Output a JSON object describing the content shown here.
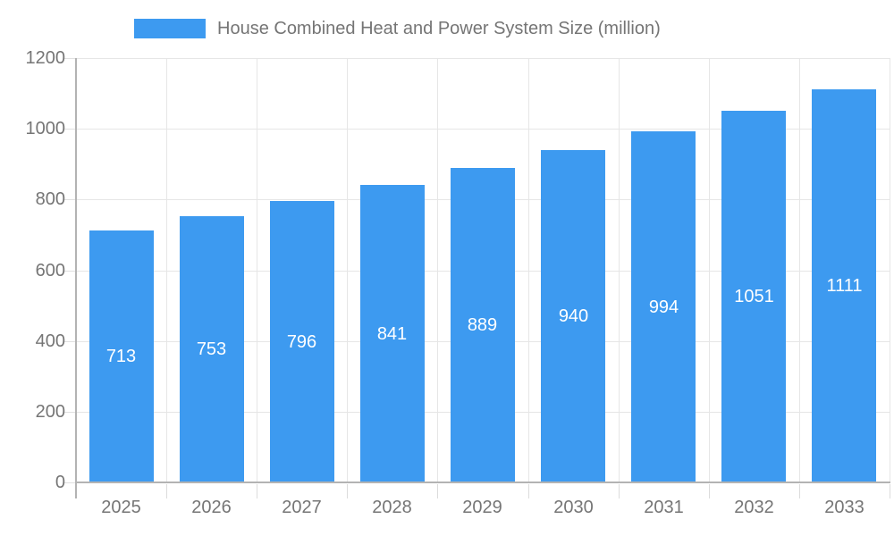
{
  "legend": {
    "label": "House Combined Heat and Power System Size (million)"
  },
  "chart_data": {
    "type": "bar",
    "title": "House Combined Heat and Power System Size (million)",
    "categories": [
      "2025",
      "2026",
      "2027",
      "2028",
      "2029",
      "2030",
      "2031",
      "2032",
      "2033"
    ],
    "values": [
      713,
      753,
      796,
      841,
      889,
      940,
      994,
      1051,
      1111
    ],
    "value_labels": [
      "713",
      "753",
      "796",
      "841",
      "889",
      "940",
      "994",
      "1051",
      "1111"
    ],
    "xlabel": "",
    "ylabel": "",
    "ylim": [
      0,
      1200
    ],
    "yticks": [
      0,
      200,
      400,
      600,
      800,
      1000,
      1200
    ],
    "grid": true,
    "legend_position": "top",
    "value_label_position": "inside-center",
    "colors": {
      "bar": "#3d9af0",
      "axis_text": "#757575",
      "grid": "#e6e6e6",
      "axis_line": "#b3b3b3",
      "value_label": "#ffffff",
      "background": "#ffffff"
    }
  }
}
